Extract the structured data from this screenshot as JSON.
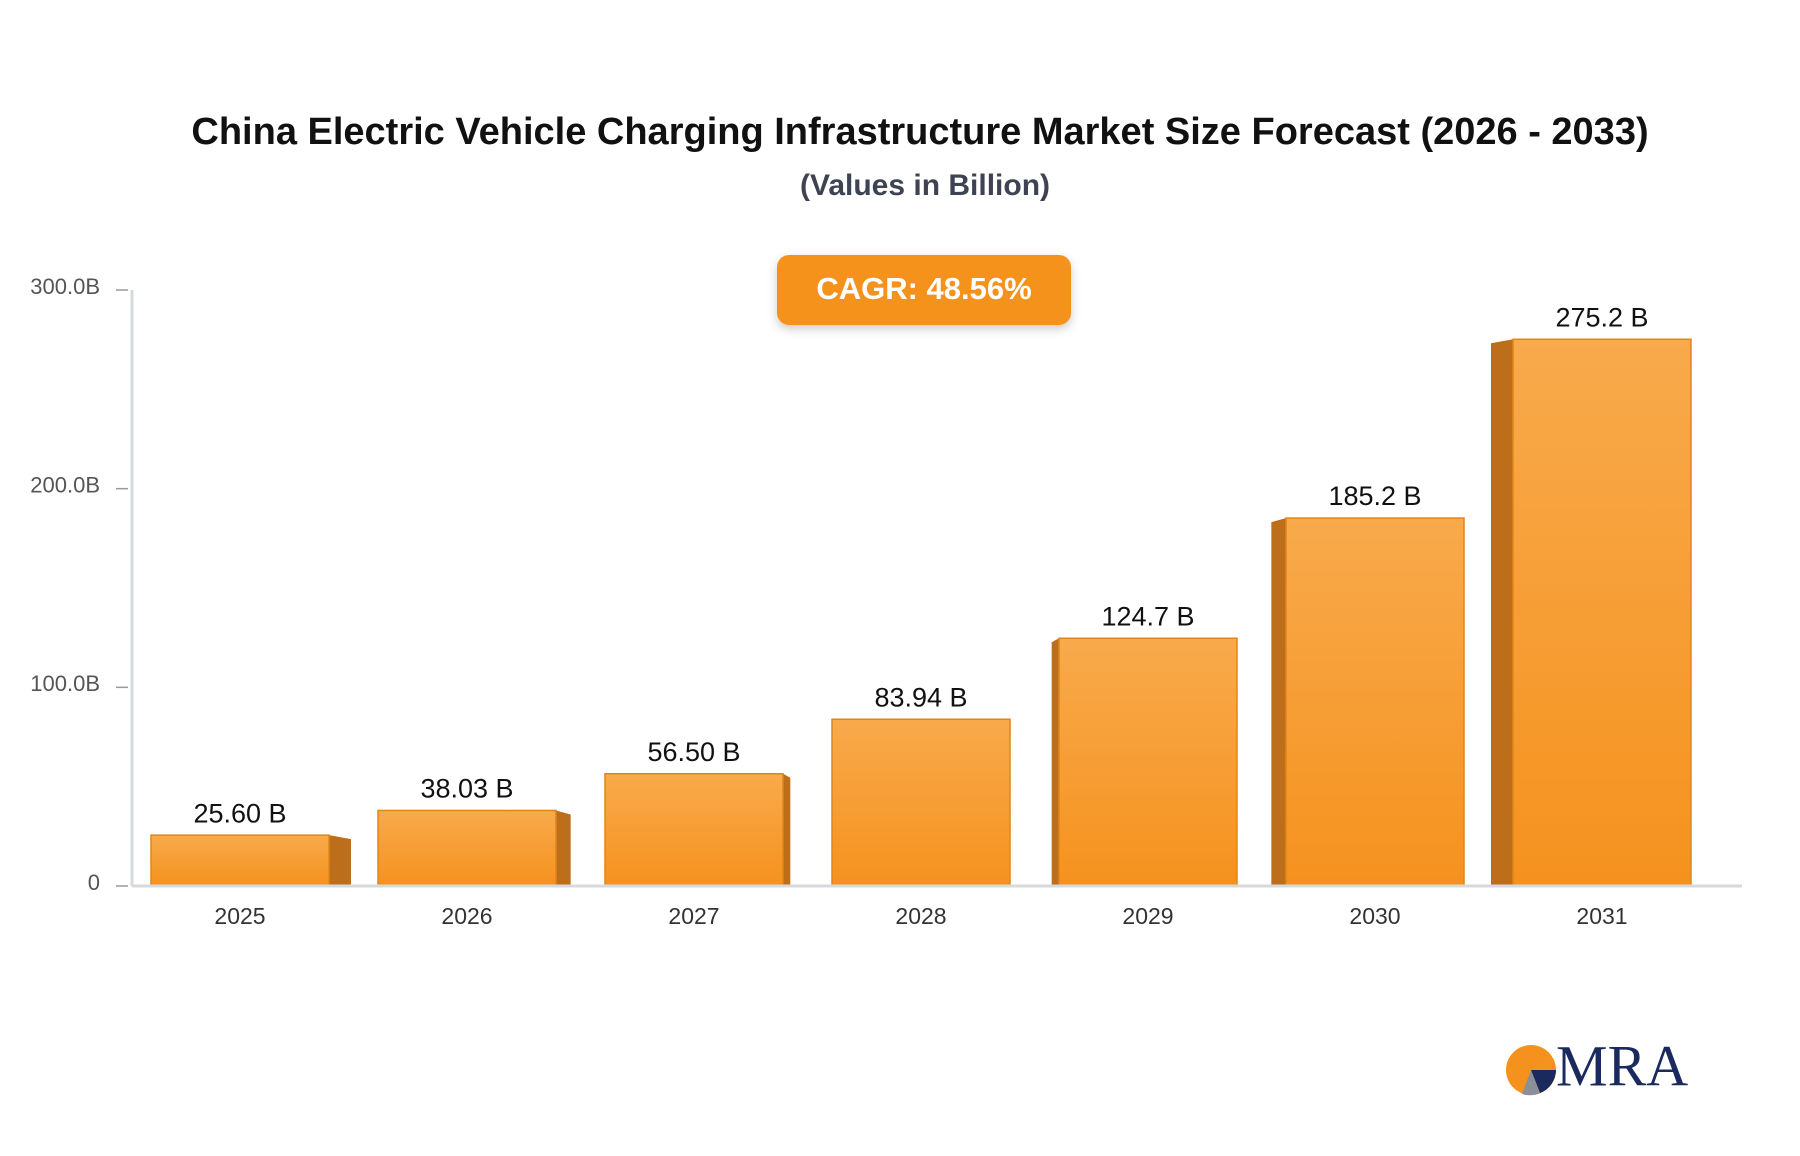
{
  "chart_data": {
    "type": "bar",
    "title": "China Electric Vehicle Charging Infrastructure Market Size Forecast (2026 - 2033)",
    "subtitle": "(Values in Billion)",
    "annotation": "CAGR: 48.56%",
    "categories": [
      "2025",
      "2026",
      "2027",
      "2028",
      "2029",
      "2030",
      "2031"
    ],
    "values": [
      25.6,
      38.03,
      56.5,
      83.94,
      124.7,
      185.2,
      275.2
    ],
    "value_labels": [
      "25.60 B",
      "38.03 B",
      "56.50 B",
      "83.94 B",
      "124.7 B",
      "185.2 B",
      "275.2 B"
    ],
    "color": "#f5961f",
    "ylim": [
      0,
      300
    ],
    "yticks": [
      0,
      {
        "value": 100,
        "label": "100.0B"
      },
      {
        "value": 200,
        "label": "200.0B"
      },
      {
        "value": 300,
        "label": "300.0B"
      }
    ],
    "grid": false
  },
  "logo": "MRA"
}
